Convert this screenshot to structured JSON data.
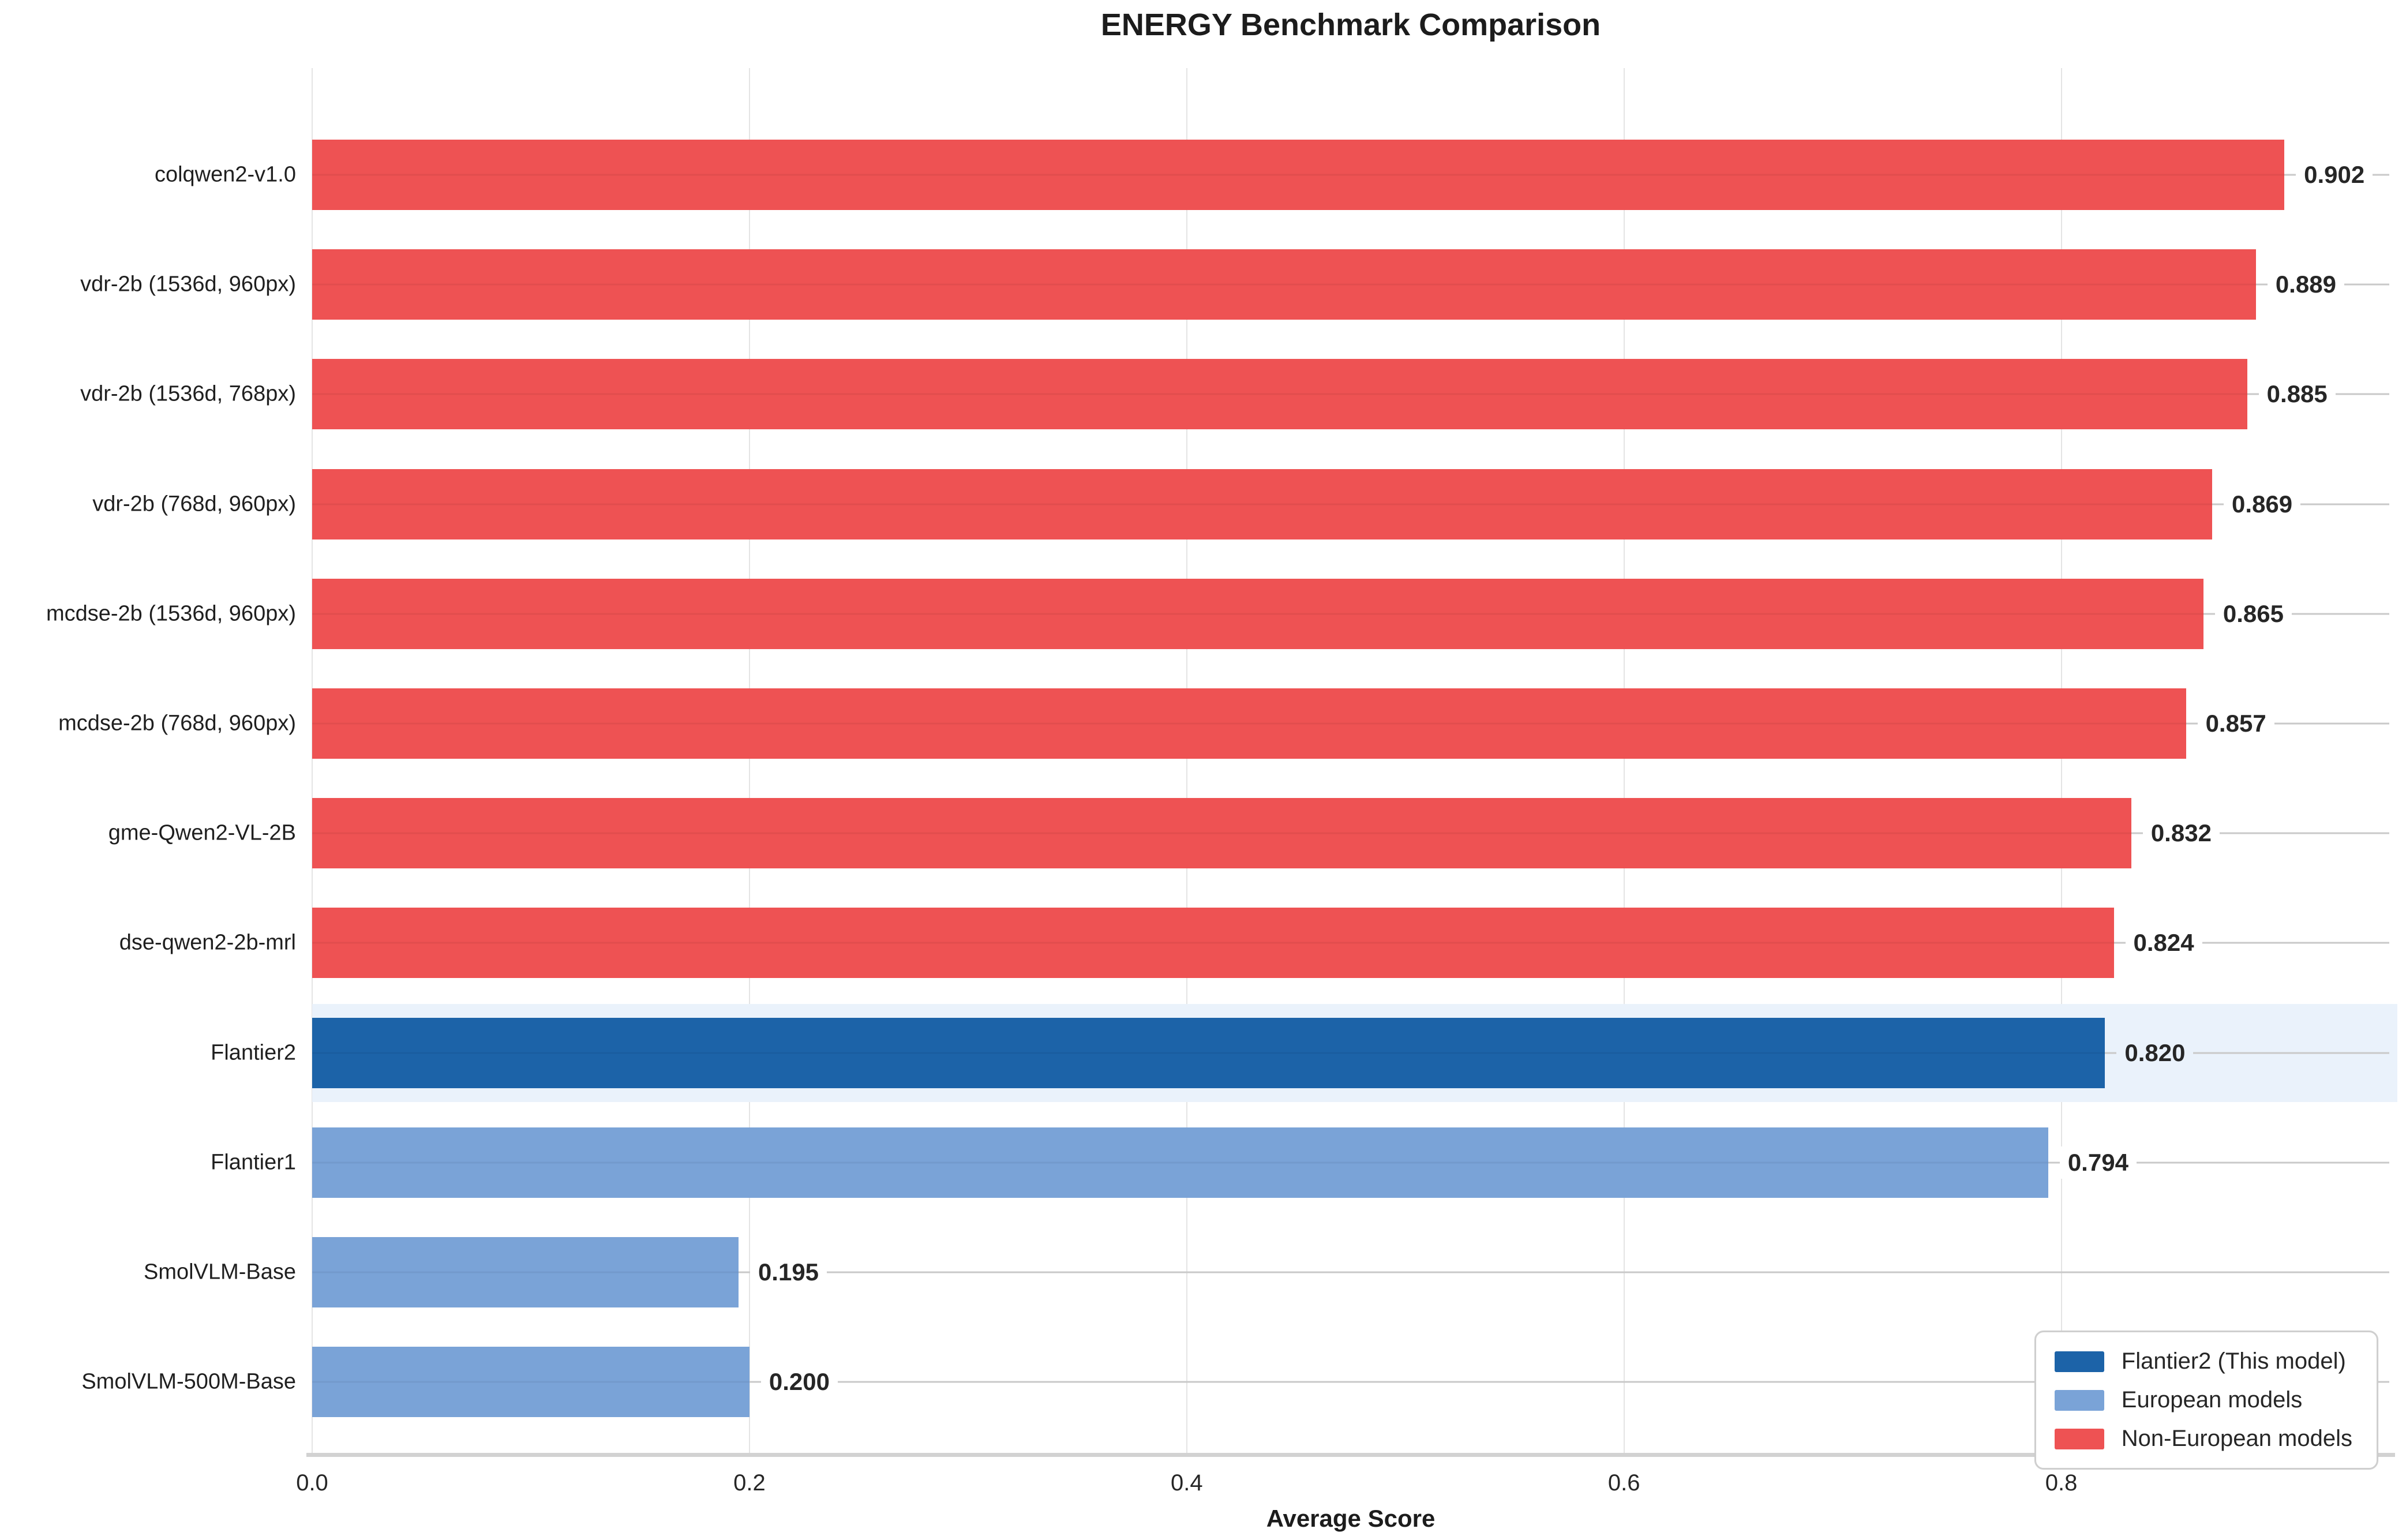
{
  "title": "ENERGY Benchmark Comparison",
  "x_axis": {
    "label": "Average Score",
    "tick_labels": [
      "0.0",
      "0.2",
      "0.4",
      "0.6",
      "0.8"
    ]
  },
  "chart_data": {
    "type": "bar",
    "orientation": "horizontal",
    "title": "ENERGY Benchmark Comparison",
    "xlabel": "Average Score",
    "xlim": [
      0,
      0.95
    ],
    "xticks": [
      0.0,
      0.2,
      0.4,
      0.6,
      0.8
    ],
    "grid": true,
    "legend_position": "lower right",
    "categories": [
      "colqwen2-v1.0",
      "vdr-2b (1536d, 960px)",
      "vdr-2b (1536d, 768px)",
      "vdr-2b (768d, 960px)",
      "mcdse-2b (1536d, 960px)",
      "mcdse-2b (768d, 960px)",
      "gme-Qwen2-VL-2B",
      "dse-qwen2-2b-mrl",
      "Flantier2",
      "Flantier1",
      "SmolVLM-Base",
      "SmolVLM-500M-Base"
    ],
    "values": [
      0.902,
      0.889,
      0.885,
      0.869,
      0.865,
      0.857,
      0.832,
      0.824,
      0.82,
      0.794,
      0.195,
      0.2
    ],
    "value_labels": [
      "0.902",
      "0.889",
      "0.885",
      "0.869",
      "0.865",
      "0.857",
      "0.832",
      "0.824",
      "0.820",
      "0.794",
      "0.195",
      "0.200"
    ],
    "groups": [
      "non_european",
      "non_european",
      "non_european",
      "non_european",
      "non_european",
      "non_european",
      "non_european",
      "non_european",
      "this_model",
      "european",
      "european",
      "european"
    ],
    "group_colors": {
      "this_model": "#1c63a8",
      "european": "#7aa3d7",
      "non_european": "#ee5253"
    },
    "highlight_category": "Flantier2",
    "highlight_color": "#eaf2fb",
    "legend": [
      {
        "label": "Flantier2 (This model)",
        "group": "this_model"
      },
      {
        "label": "European models",
        "group": "european"
      },
      {
        "label": "Non-European models",
        "group": "non_european"
      }
    ]
  },
  "colors": {
    "background": "#ffffff",
    "row_line": "#c9c9c9",
    "grid_line": "#e4e4e4",
    "axis_line": "#d2d2d2",
    "legend_border": "#cfcfcf",
    "title_text": "#1c1c1c",
    "body_text": "#262626"
  }
}
